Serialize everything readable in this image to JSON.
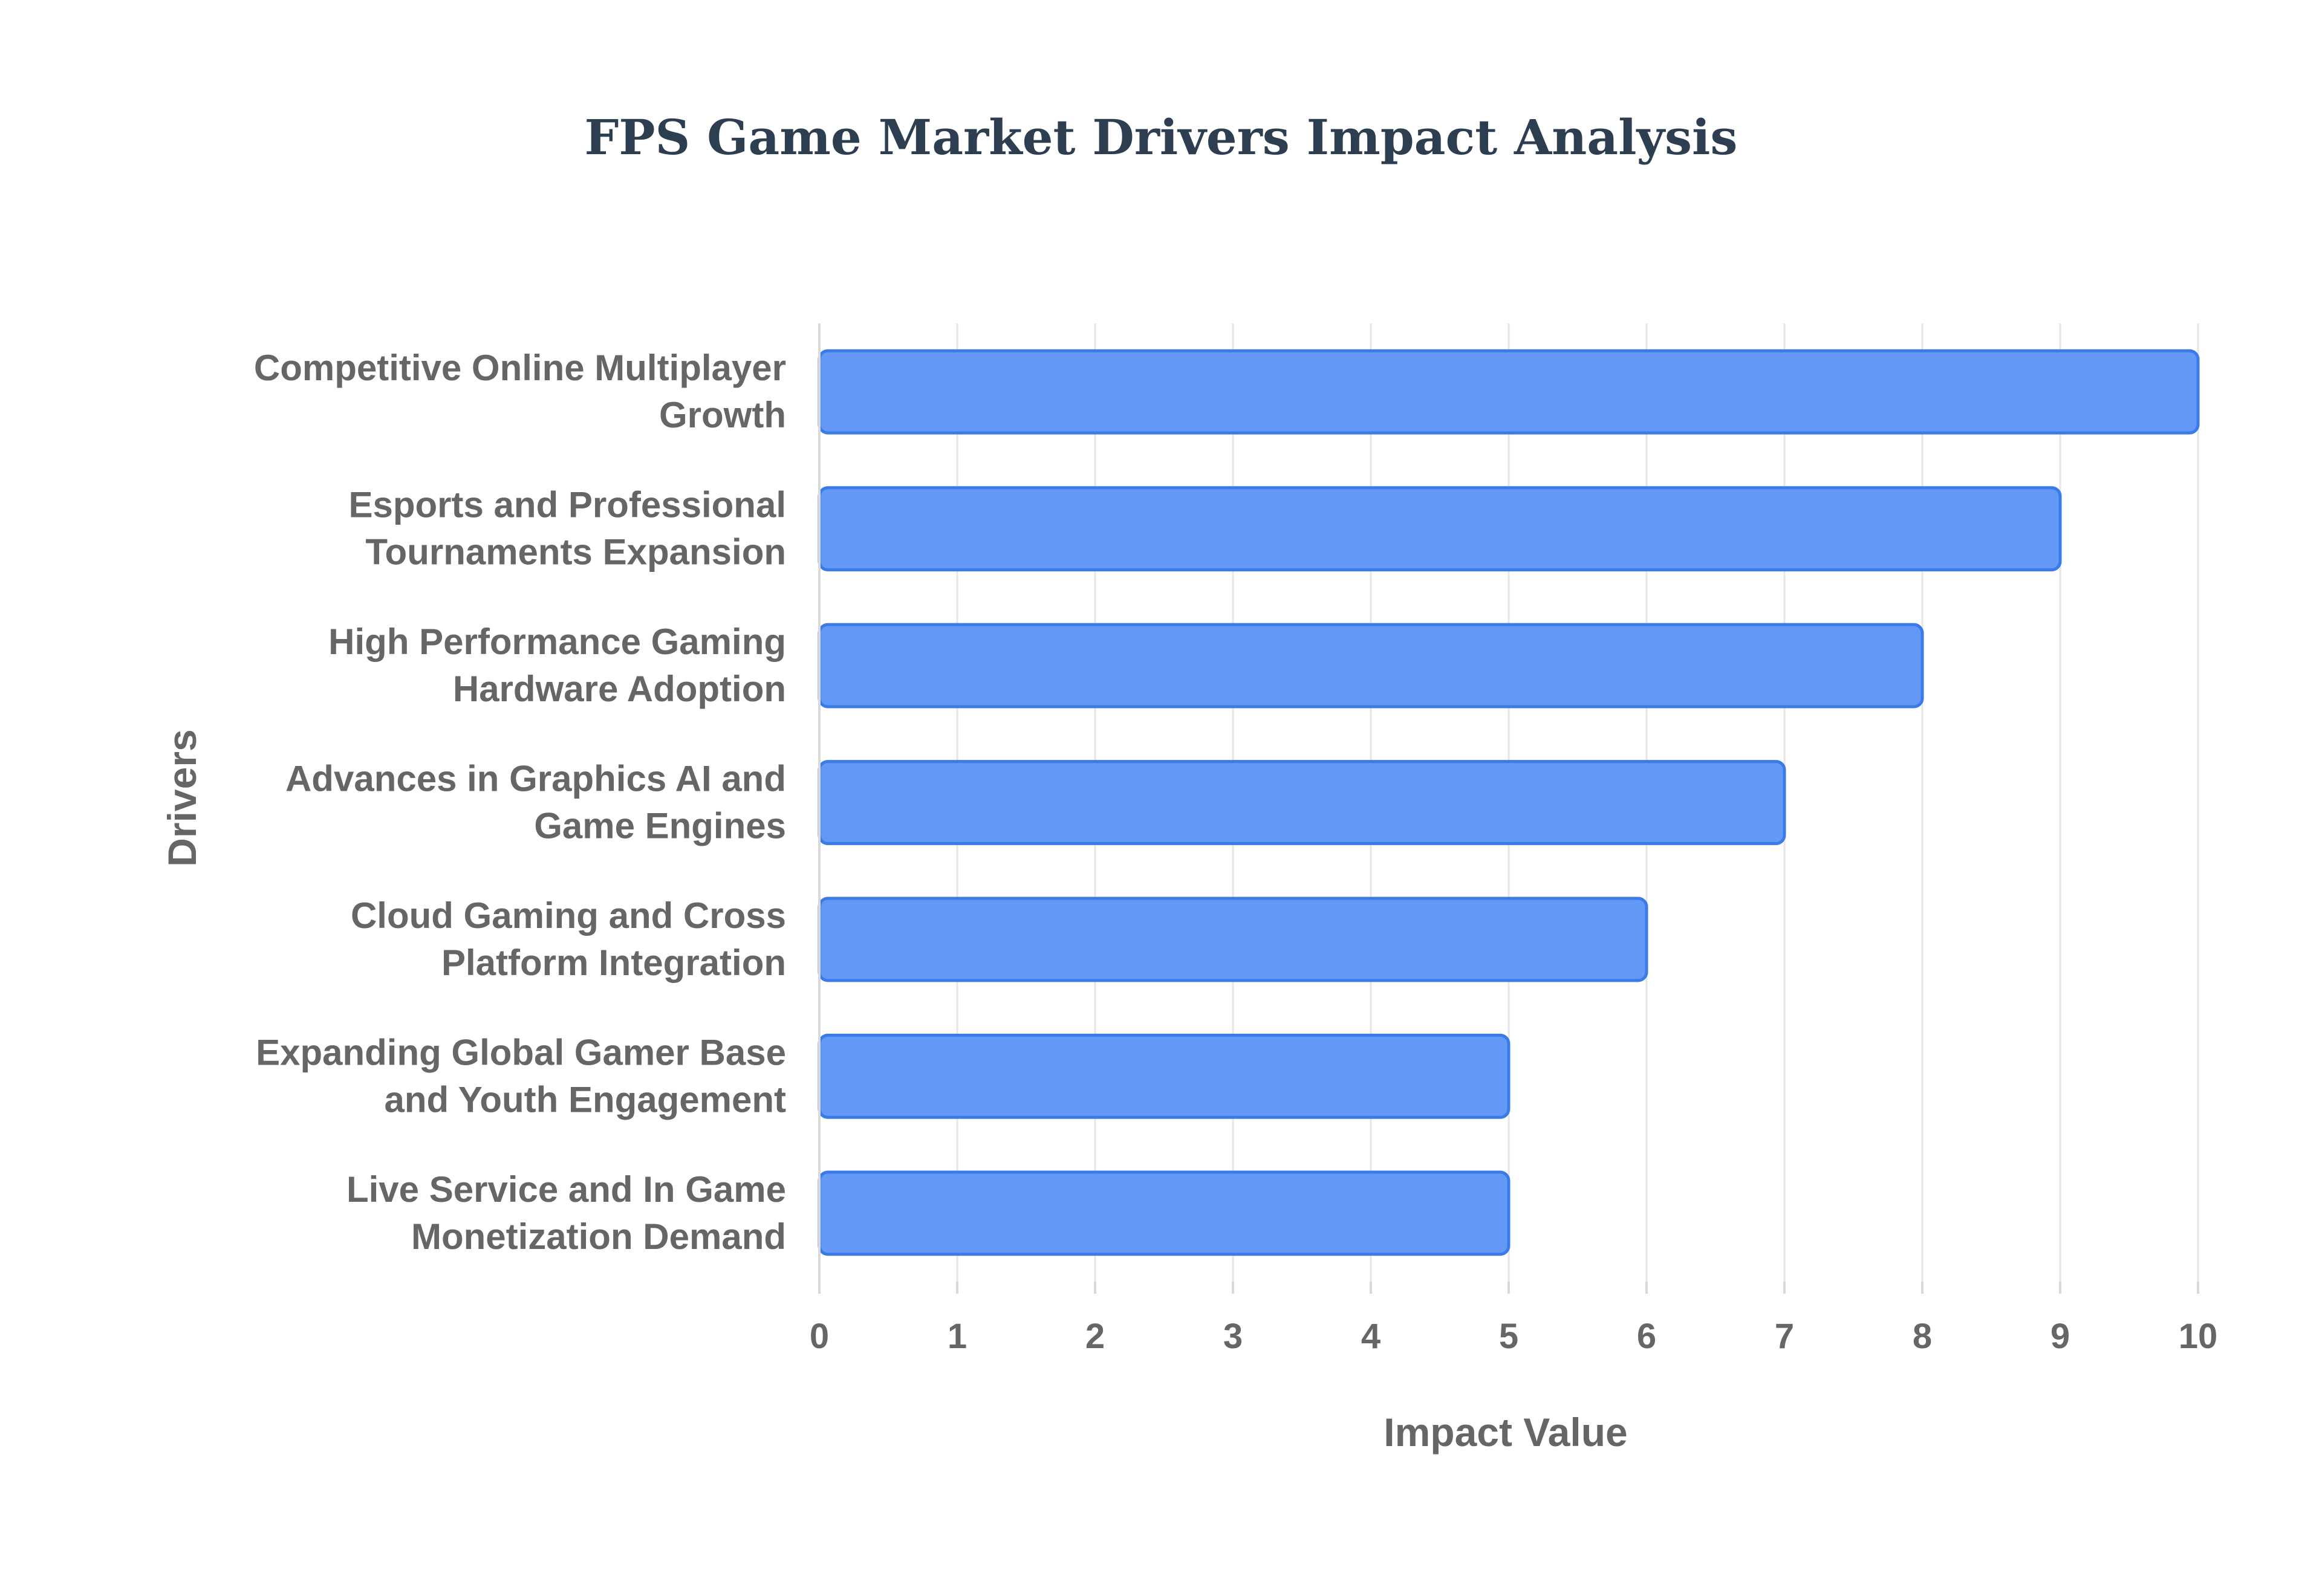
{
  "chart_data": {
    "type": "bar",
    "orientation": "horizontal",
    "title": "FPS Game Market Drivers Impact Analysis",
    "xlabel": "Impact Value",
    "ylabel": "Drivers",
    "categories": [
      [
        "Competitive Online Multiplayer",
        "Growth"
      ],
      [
        "Esports and Professional",
        "Tournaments Expansion"
      ],
      [
        "High Performance Gaming",
        "Hardware Adoption"
      ],
      [
        "Advances in Graphics AI and",
        "Game Engines"
      ],
      [
        "Cloud Gaming and Cross",
        "Platform Integration"
      ],
      [
        "Expanding Global Gamer Base",
        "and Youth Engagement"
      ],
      [
        "Live Service and In Game",
        "Monetization Demand"
      ]
    ],
    "values": [
      10,
      9,
      8,
      7,
      6,
      5,
      5
    ],
    "xlim": [
      0,
      10
    ],
    "xticks": [
      "0",
      "1",
      "2",
      "3",
      "4",
      "5",
      "6",
      "7",
      "8",
      "9",
      "10"
    ],
    "grid": true,
    "bar_color": "#6498f6",
    "bar_border_color": "#3b7be8"
  }
}
